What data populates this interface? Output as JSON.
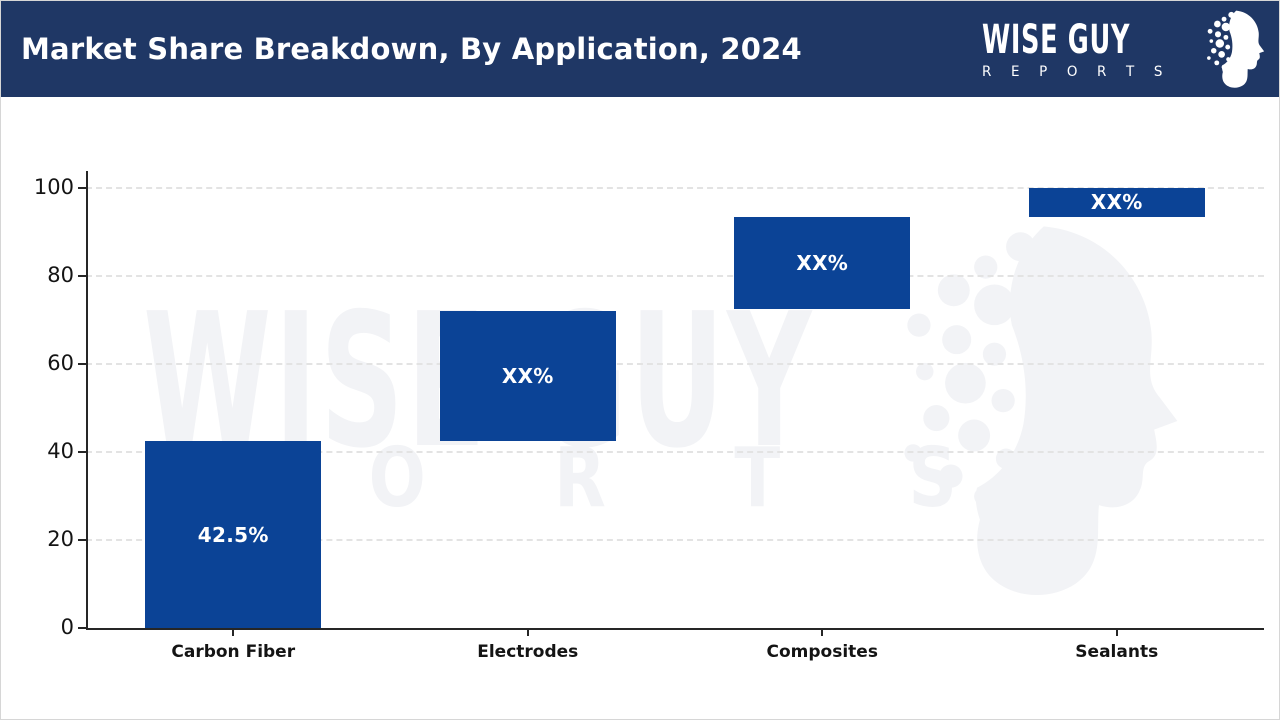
{
  "header": {
    "title": "Market Share Breakdown, By Application, 2024",
    "bg_color": "#1f3765",
    "logo": {
      "line1": "WISE GUY",
      "line2": "R E P O R T S",
      "head_icon": "head-profile-dots"
    }
  },
  "watermark": {
    "line1": "WISE GUY",
    "line2": "P O R T S",
    "head_icon": "head-profile-dots"
  },
  "chart_data": {
    "type": "bar",
    "variant": "waterfall",
    "title": "Market Share Breakdown, By Application, 2024",
    "categories": [
      "Carbon Fiber",
      "Electrodes",
      "Composites",
      "Sealants"
    ],
    "segments": [
      [
        0,
        42.5
      ],
      [
        42.5,
        72
      ],
      [
        72.5,
        93.5
      ],
      [
        93.5,
        100
      ]
    ],
    "values": [
      42.5,
      29.5,
      21,
      6.5
    ],
    "bar_labels": [
      "42.5%",
      "XX%",
      "XX%",
      "XX%"
    ],
    "xlabel": "",
    "ylabel": "",
    "y_ticks": [
      0,
      20,
      40,
      60,
      80,
      100
    ],
    "ylim": [
      0,
      104
    ],
    "grid": "horizontal-dashed",
    "legend": "none",
    "bar_color": "#0b4396",
    "grid_color": "#e3e3e3",
    "axis_color": "#262626",
    "label_color": "#ffffff"
  }
}
